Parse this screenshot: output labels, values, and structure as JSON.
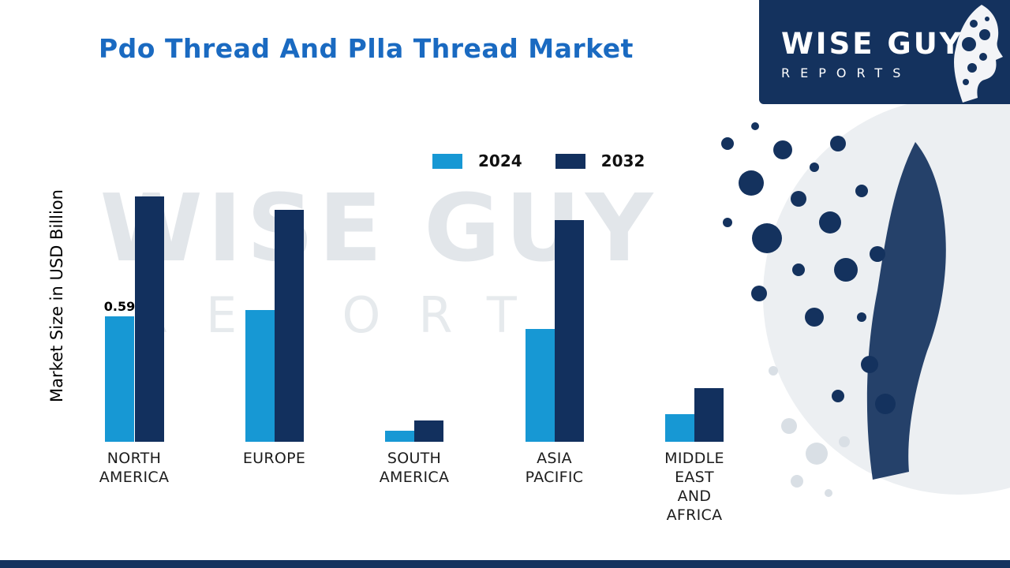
{
  "page": {
    "title": "Pdo Thread And Plla Thread Market",
    "ylabel": "Market Size in USD Billion"
  },
  "logo": {
    "line1": "WISE GUY",
    "line2": "REPORTS"
  },
  "watermark": {
    "line1": "WISE GUY",
    "line2": "REPORTS"
  },
  "legend": [
    {
      "label": "2024",
      "color": "#1798d4"
    },
    {
      "label": "2032",
      "color": "#12305e"
    }
  ],
  "chart_data": {
    "type": "bar",
    "title": "Pdo Thread And Plla Thread Market",
    "xlabel": "",
    "ylabel": "Market Size in USD Billion",
    "categories": [
      "NORTH AMERICA",
      "EUROPE",
      "SOUTH AMERICA",
      "ASIA PACIFIC",
      "MIDDLE EAST AND AFRICA"
    ],
    "category_label_lines": [
      [
        "NORTH",
        "AMERICA"
      ],
      [
        "EUROPE"
      ],
      [
        "SOUTH",
        "AMERICA"
      ],
      [
        "ASIA",
        "PACIFIC"
      ],
      [
        "MIDDLE",
        "EAST",
        "AND",
        "AFRICA"
      ]
    ],
    "series": [
      {
        "name": "2024",
        "color": "#1798d4",
        "values": [
          0.59,
          0.62,
          0.05,
          0.53,
          0.13
        ]
      },
      {
        "name": "2032",
        "color": "#12305e",
        "values": [
          1.15,
          1.09,
          0.1,
          1.04,
          0.25
        ]
      }
    ],
    "annotations": [
      {
        "category_index": 0,
        "series_index": 0,
        "text": "0.59"
      }
    ],
    "ylim": [
      0,
      1.3
    ],
    "grid": false,
    "legend_position": "top"
  }
}
